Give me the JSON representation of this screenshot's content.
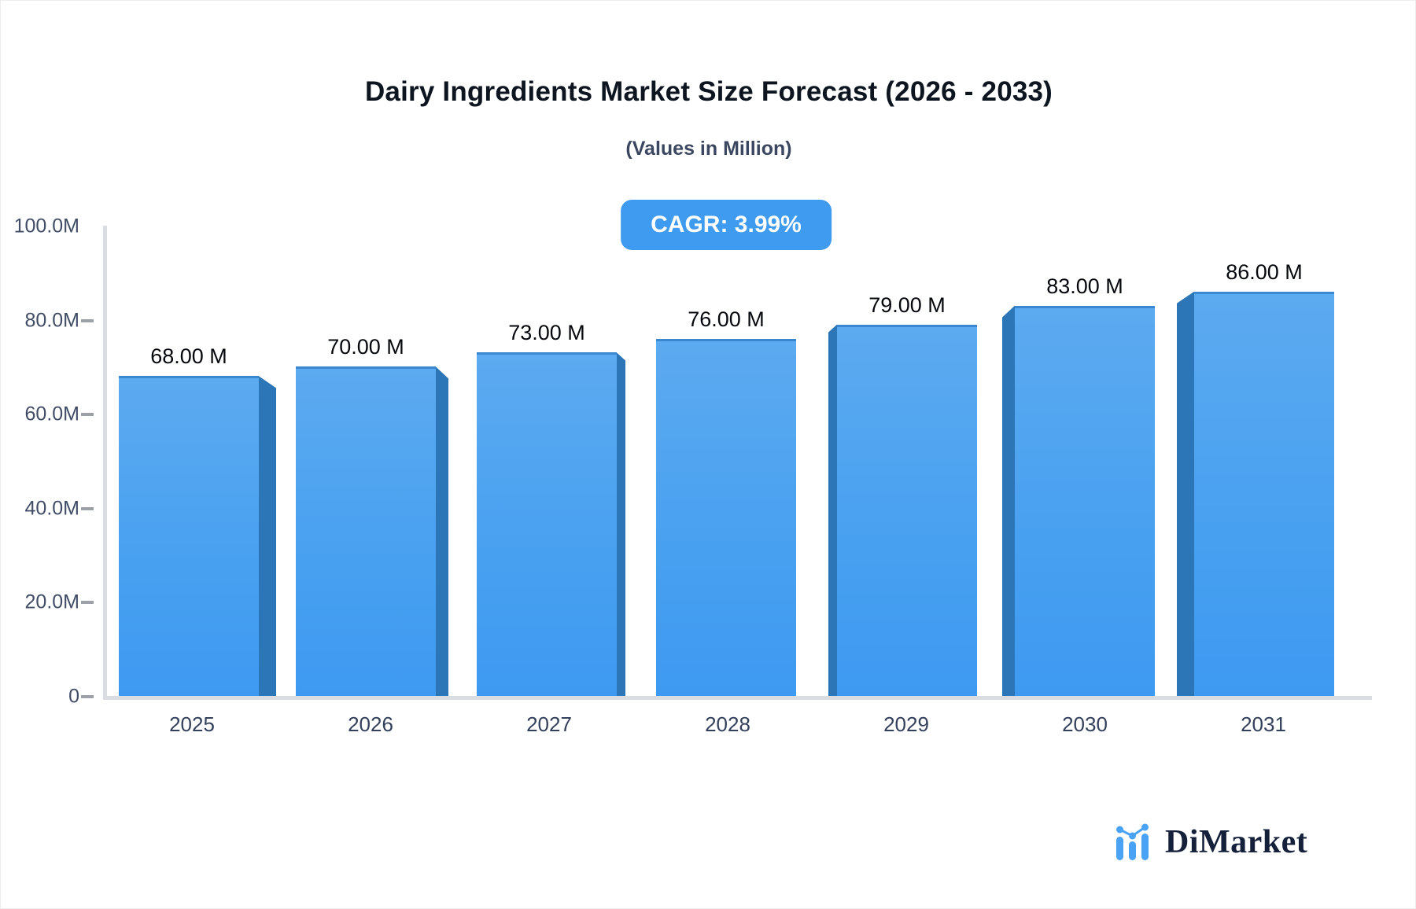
{
  "title": "Dairy Ingredients Market Size Forecast (2026 - 2033)",
  "subtitle": "(Values in Million)",
  "badge": {
    "label": "CAGR: 3.99%"
  },
  "brand": {
    "name": "DiMarket",
    "icon": "mini-bar-chart-icon"
  },
  "colors": {
    "badge_bg": "#3f9bef",
    "bar_face_top": "#5caaf0",
    "bar_face_bottom": "#3e99f1",
    "bar_side": "#2c76b8",
    "axis": "#d9dce1",
    "tick": "#9ca1a8",
    "y_label": "#414d66",
    "x_label": "#33405c",
    "value_label": "#05080c",
    "title": "#0d1520",
    "subtitle": "#3b4760",
    "brand_blue": "#4aa2f5",
    "brand_navy": "#15203a"
  },
  "chart_data": {
    "type": "bar",
    "title": "Dairy Ingredients Market Size Forecast (2026 - 2033)",
    "subtitle": "(Values in Million)",
    "unit": "Million",
    "categories": [
      "2025",
      "2026",
      "2027",
      "2028",
      "2029",
      "2030",
      "2031"
    ],
    "values": [
      68,
      70,
      73,
      76,
      79,
      83,
      86
    ],
    "value_labels": [
      "68.00 M",
      "70.00 M",
      "73.00 M",
      "76.00 M",
      "79.00 M",
      "83.00 M",
      "86.00 M"
    ],
    "y_tick_labels": [
      "0",
      "20.0M",
      "40.0M",
      "60.0M",
      "80.0M",
      "100.0M"
    ],
    "y_tick_values": [
      0,
      20,
      40,
      60,
      80,
      100
    ],
    "ylim": [
      0,
      100
    ],
    "grid": false,
    "legend": false,
    "annotations": [
      "CAGR: 3.99%"
    ]
  }
}
